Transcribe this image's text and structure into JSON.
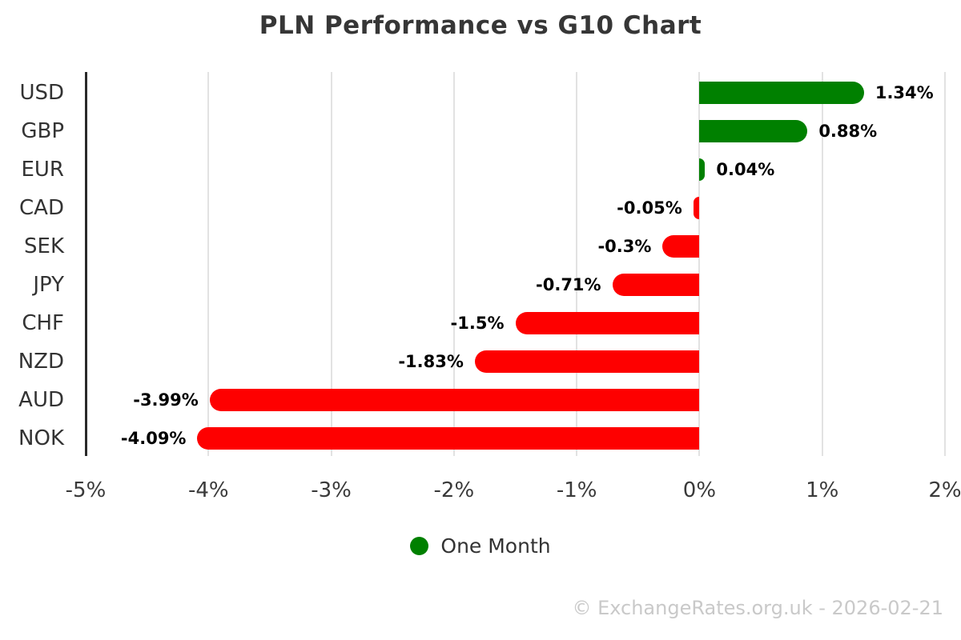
{
  "title": "PLN Performance vs G10 Chart",
  "legend": {
    "label": "One Month",
    "marker_color": "#008000"
  },
  "footer": "© ExchangeRates.org.uk - 2026-02-21",
  "colors": {
    "positive_bar": "#008000",
    "negative_bar": "#fe0000",
    "gridline": "#e2e2e2",
    "axis_line": "#2a2a2a",
    "title_text": "#363636",
    "tick_text": "#3a3a3a",
    "value_text": "#000000",
    "footer_text": "#c9c9c9"
  },
  "chart_data": {
    "type": "bar",
    "orientation": "horizontal",
    "title": "PLN Performance vs G10 Chart",
    "categories": [
      "USD",
      "GBP",
      "EUR",
      "CAD",
      "SEK",
      "JPY",
      "CHF",
      "NZD",
      "AUD",
      "NOK"
    ],
    "series": [
      {
        "name": "One Month",
        "values": [
          1.34,
          0.88,
          0.04,
          -0.05,
          -0.3,
          -0.71,
          -1.5,
          -1.83,
          -3.99,
          -4.09
        ],
        "labels": [
          "1.34%",
          "0.88%",
          "0.04%",
          "-0.05%",
          "-0.3%",
          "-0.71%",
          "-1.5%",
          "-1.83%",
          "-3.99%",
          "-4.09%"
        ]
      }
    ],
    "xlabel": "",
    "ylabel": "",
    "xlim": [
      -5,
      2
    ],
    "x_tick_values": [
      -5,
      -4,
      -3,
      -2,
      -1,
      0,
      1,
      2
    ],
    "x_tick_labels": [
      "-5%",
      "-4%",
      "-3%",
      "-2%",
      "-1%",
      "0%",
      "1%",
      "2%"
    ],
    "grid": true,
    "legend_position": "bottom"
  }
}
